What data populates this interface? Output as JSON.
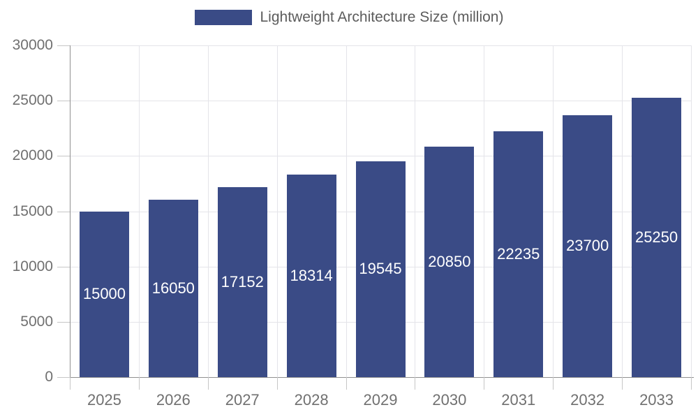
{
  "legend": {
    "label": "Lightweight Architecture Size (million)"
  },
  "chart_data": {
    "type": "bar",
    "title": "Lightweight Architecture Size (million)",
    "categories": [
      "2025",
      "2026",
      "2027",
      "2028",
      "2029",
      "2030",
      "2031",
      "2032",
      "2033"
    ],
    "values": [
      15000,
      16050,
      17152,
      18314,
      19545,
      20850,
      22235,
      23700,
      25250
    ],
    "xlabel": "",
    "ylabel": "",
    "ylim": [
      0,
      30000
    ],
    "yticks": [
      0,
      5000,
      10000,
      15000,
      20000,
      25000,
      30000
    ],
    "grid": true,
    "legend_position": "top-center",
    "value_labels": "inside-center-white",
    "colors": {
      "bar": "#3A4B86",
      "grid": "#e4e4e9",
      "axis_line": "#909090",
      "tick": "#c6c6c6",
      "axis_label": "#707070",
      "legend_text": "#5c5c5c",
      "value_label": "#ffffff"
    }
  }
}
